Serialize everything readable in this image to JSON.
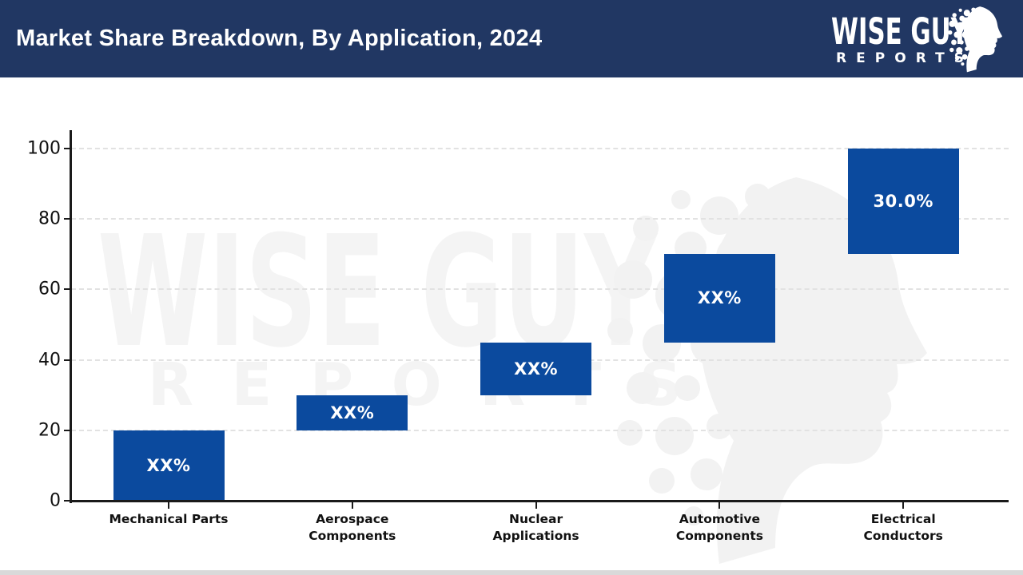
{
  "header": {
    "title": "Market Share Breakdown, By Application, 2024",
    "bg_color": "#213763",
    "logo": {
      "line1": "WISE GUY",
      "line2": "REPORTS"
    }
  },
  "watermark": {
    "line1": "WISE GUY",
    "line2": "REPORTS"
  },
  "chart_data": {
    "type": "bar",
    "subtype": "floating-waterfall",
    "title": "Market Share Breakdown, By Application, 2024",
    "xlabel": "",
    "ylabel": "",
    "ylim": [
      0,
      105
    ],
    "yticks": [
      0,
      20,
      40,
      60,
      80,
      100
    ],
    "grid": "dashed-horizontal",
    "legend": "none",
    "bar_color": "#0b4a9e",
    "label_color": "#ffffff",
    "categories": [
      [
        "Mechanical Parts"
      ],
      [
        "Aerospace",
        "Components"
      ],
      [
        "Nuclear",
        "Applications"
      ],
      [
        "Automotive",
        "Components"
      ],
      [
        "Electrical",
        "Conductors"
      ]
    ],
    "bars": [
      {
        "category": "Mechanical Parts",
        "start": 0,
        "end": 20,
        "label": "XX%"
      },
      {
        "category": "Aerospace Components",
        "start": 20,
        "end": 30,
        "label": "XX%"
      },
      {
        "category": "Nuclear Applications",
        "start": 30,
        "end": 45,
        "label": "XX%"
      },
      {
        "category": "Automotive Components",
        "start": 45,
        "end": 70,
        "label": "XX%"
      },
      {
        "category": "Electrical Conductors",
        "start": 70,
        "end": 100,
        "label": "30.0%"
      }
    ]
  }
}
